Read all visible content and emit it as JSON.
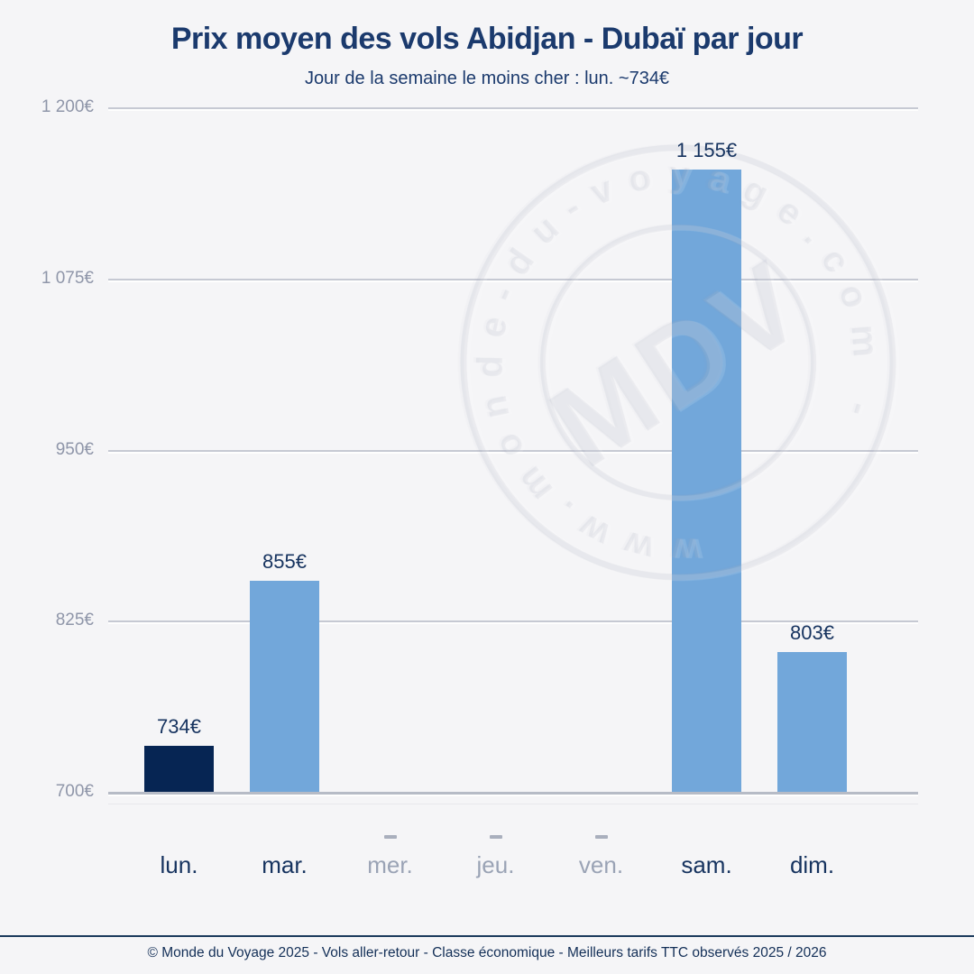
{
  "page": {
    "background": "#f5f5f7"
  },
  "header": {
    "title": "Prix moyen des vols Abidjan - Dubaï par jour",
    "subtitle": "Jour de la semaine le moins cher : lun. ~734€"
  },
  "chart_data": {
    "type": "bar",
    "title": "Prix moyen des vols Abidjan - Dubaï par jour",
    "subtitle": "Jour de la semaine le moins cher : lun. ~734€",
    "categories": [
      "lun.",
      "mar.",
      "mer.",
      "jeu.",
      "ven.",
      "sam.",
      "dim."
    ],
    "values": [
      734,
      855,
      null,
      null,
      null,
      1155,
      803
    ],
    "value_labels": [
      "734€",
      "855€",
      "–",
      "–",
      "–",
      "1 155€",
      "803€"
    ],
    "missing_marker": "–",
    "xlabel": "",
    "ylabel": "",
    "ylim": [
      700,
      1200
    ],
    "yticks": [
      700,
      825,
      950,
      1075,
      1200
    ],
    "ytick_labels": [
      "700€",
      "825€",
      "950€",
      "1 075€",
      "1 200€"
    ],
    "grid": true,
    "legend": null,
    "highlight_index": 0,
    "colors": {
      "bar": "#72a7da",
      "bar_highlight": "#062553",
      "value_label": "#16335f",
      "day_active": "#16335f",
      "day_inactive": "#9aa3b5",
      "tick_label": "#8f96a9",
      "gridline": "#c6c9d3",
      "baseline": "#b6bbc6",
      "background": "#f5f5f7",
      "title": "#1b3a6d"
    }
  },
  "watermark": {
    "ring_text": "www.monde-du-voyage.com -",
    "center_text": "MDV"
  },
  "footer": {
    "text": "© Monde du Voyage 2025 - Vols aller-retour - Classe économique - Meilleurs tarifs TTC observés 2025 / 2026"
  }
}
